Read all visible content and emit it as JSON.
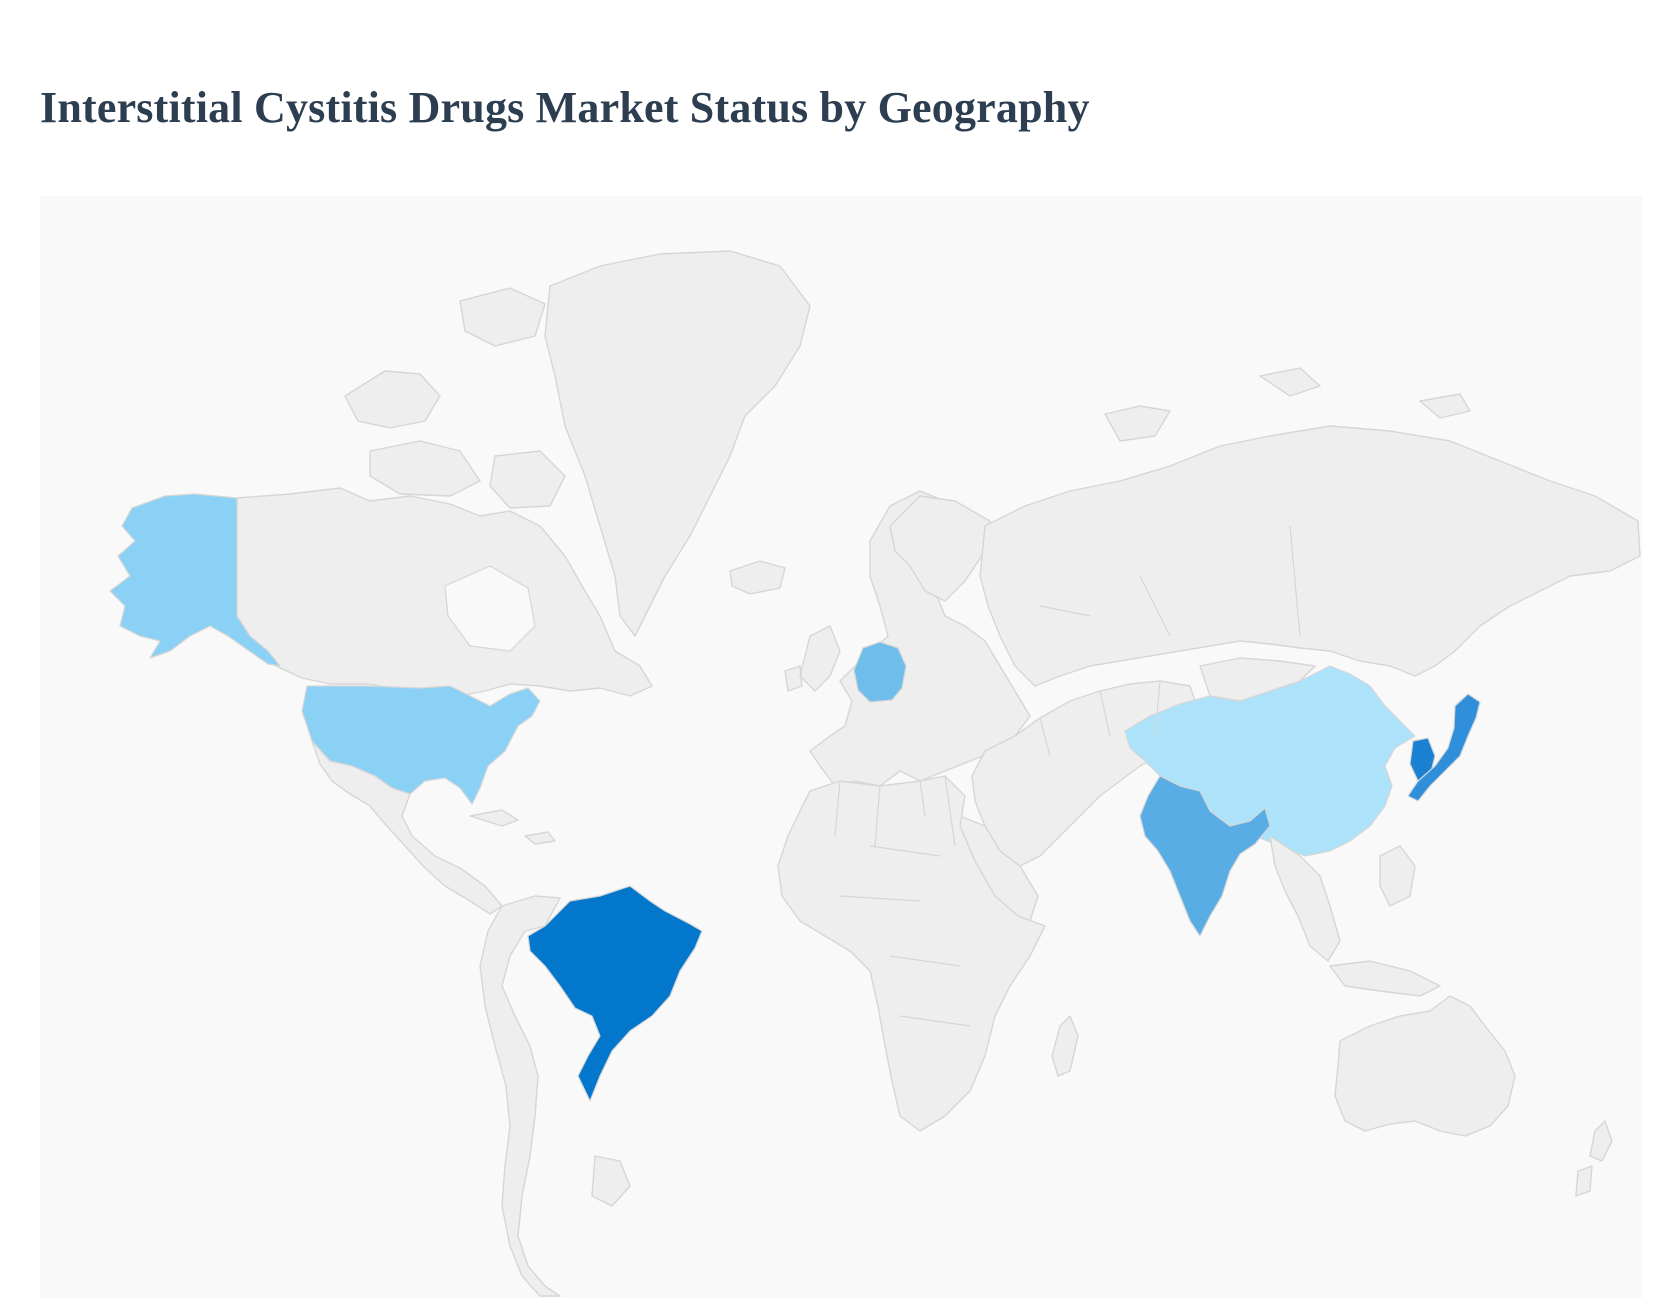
{
  "title": "Interstitial Cystitis Drugs Market Status by Geography",
  "colors": {
    "background": "#f9f9f9",
    "land": "#eeeeee",
    "border": "#d6d6d6",
    "title": "#2c3e50"
  },
  "highlighted_countries": [
    {
      "name": "United States",
      "color": "#8ad1f5"
    },
    {
      "name": "Germany",
      "color": "#6fbdeb"
    },
    {
      "name": "Brazil",
      "color": "#0277cc"
    },
    {
      "name": "India",
      "color": "#58ade5"
    },
    {
      "name": "China",
      "color": "#ade3fa"
    },
    {
      "name": "Japan",
      "color": "#2f8fdb"
    },
    {
      "name": "South Korea",
      "color": "#1a80d2"
    }
  ]
}
